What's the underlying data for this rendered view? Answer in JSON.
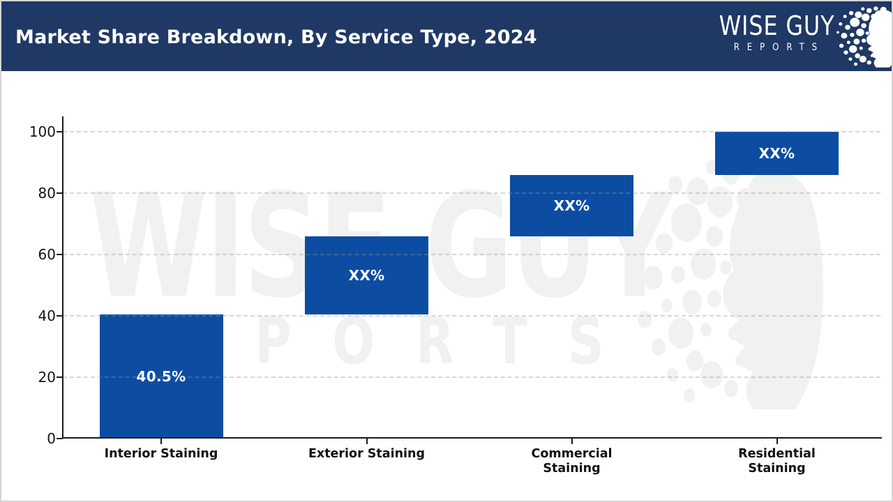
{
  "header": {
    "title": "Market Share Breakdown, By Service Type, 2024",
    "logo": {
      "line1": "WISE GUY",
      "line2": "REPORTS"
    }
  },
  "watermark": {
    "line1": "WISE GUY",
    "line2": "REPORTS"
  },
  "colors": {
    "header_bg": "#1f3864",
    "bar": "#0c4da2",
    "bar_label": "#ffffff",
    "axis": "#1a1a1a",
    "grid": "#d0d0d0",
    "watermark": "#f1f1f1",
    "page_border": "#d4d4d4"
  },
  "chart_data": {
    "type": "bar",
    "subtype": "waterfall",
    "title": "Market Share Breakdown, By Service Type, 2024",
    "categories": [
      "Interior Staining",
      "Exterior Staining",
      "Commercial Staining",
      "Residential Staining"
    ],
    "category_lines": [
      [
        "Interior Staining"
      ],
      [
        "Exterior Staining"
      ],
      [
        "Commercial",
        "Staining"
      ],
      [
        "Residential",
        "Staining"
      ]
    ],
    "bars": [
      {
        "label": "40.5%",
        "start": 0,
        "end": 40.5,
        "value": 40.5
      },
      {
        "label": "XX%",
        "start": 40.5,
        "end": 66,
        "value": 25.5
      },
      {
        "label": "XX%",
        "start": 66,
        "end": 86,
        "value": 20
      },
      {
        "label": "XX%",
        "start": 86,
        "end": 100,
        "value": 14
      }
    ],
    "yticks": [
      0,
      20,
      40,
      60,
      80,
      100
    ],
    "ylim": [
      0,
      100
    ],
    "xlabel": "",
    "ylabel": "",
    "grid": "dashed-horizontal",
    "legend": "none",
    "bar_color": "#0c4da2",
    "label_color": "#ffffff"
  }
}
